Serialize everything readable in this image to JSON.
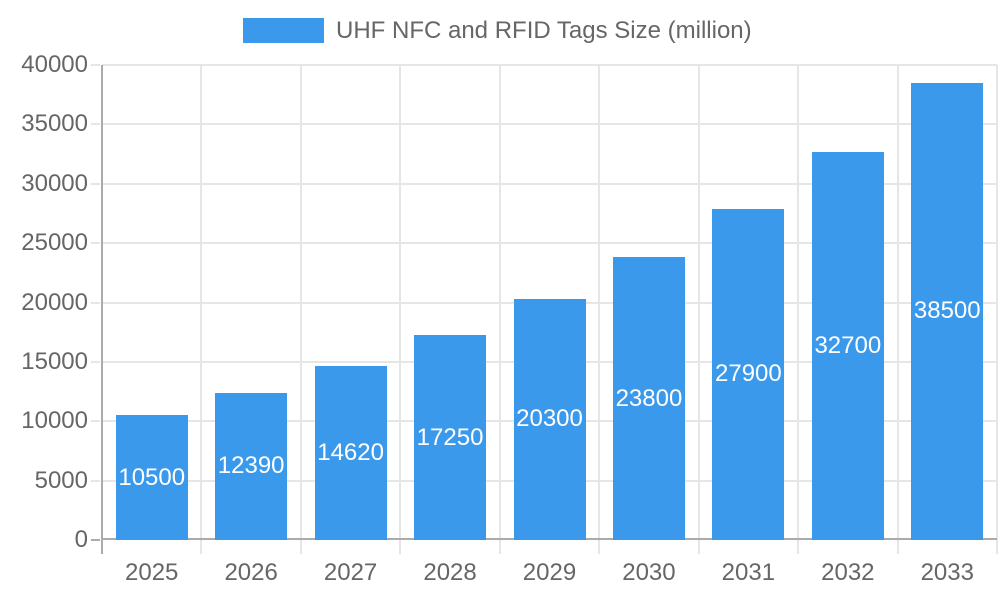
{
  "legend": {
    "label": "UHF NFC and RFID Tags Size (million)",
    "swatch_color": "#3b99ec"
  },
  "chart_data": {
    "type": "bar",
    "title": "UHF NFC and RFID Tags Size (million)",
    "series_name": "UHF NFC and RFID Tags Size (million)",
    "categories": [
      "2025",
      "2026",
      "2027",
      "2028",
      "2029",
      "2030",
      "2031",
      "2032",
      "2033"
    ],
    "values": [
      10500,
      12390,
      14620,
      17250,
      20300,
      23800,
      27900,
      32700,
      38500
    ],
    "value_labels": [
      "10500",
      "12390",
      "14620",
      "17250",
      "20300",
      "23800",
      "27900",
      "32700",
      "38500"
    ],
    "xlabel": "",
    "ylabel": "",
    "ylim": [
      0,
      40000
    ],
    "ytick_step": 5000,
    "ytick_labels": [
      "0",
      "5000",
      "10000",
      "15000",
      "20000",
      "25000",
      "30000",
      "35000",
      "40000"
    ],
    "grid": true,
    "legend_position": "top"
  },
  "colors": {
    "bar": "#3b99ec",
    "grid": "#e6e6e6",
    "axis": "#ababab",
    "text": "#666666",
    "value_label": "#ffffff",
    "background": "#ffffff"
  }
}
